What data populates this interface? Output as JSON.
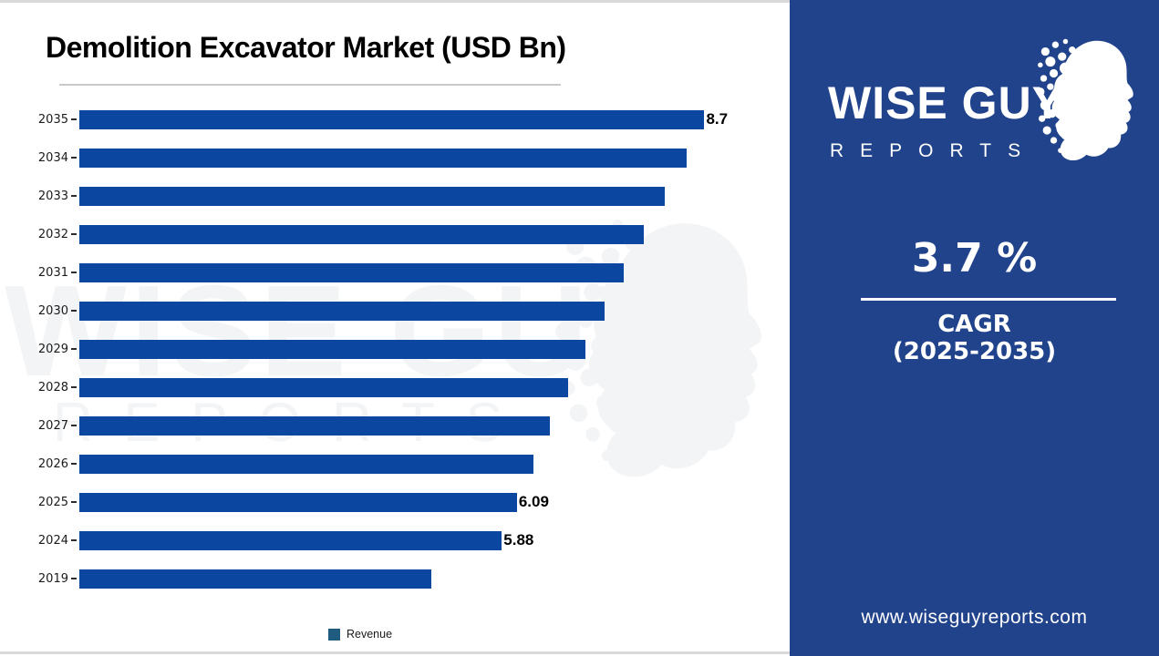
{
  "chart_data": {
    "type": "bar",
    "orientation": "horizontal",
    "title": "Demolition Excavator Market (USD Bn)",
    "xlabel": "",
    "ylabel": "",
    "unit": "USD Bn",
    "xlim": [
      0,
      9.9
    ],
    "grid": false,
    "bar_color": "#0b47a1",
    "legend_label": "Revenue",
    "legend_swatch_color": "#1f5c80",
    "legend_position": "bottom-center",
    "categories": [
      "2035",
      "2034",
      "2033",
      "2032",
      "2031",
      "2030",
      "2029",
      "2028",
      "2027",
      "2026",
      "2025",
      "2024",
      "2019"
    ],
    "values": [
      8.7,
      8.45,
      8.15,
      7.86,
      7.58,
      7.31,
      7.05,
      6.8,
      6.55,
      6.32,
      6.09,
      5.88,
      4.9
    ],
    "rows": [
      {
        "year": "2035",
        "value": 8.7,
        "label": "8.7"
      },
      {
        "year": "2034",
        "value": 8.45,
        "label": ""
      },
      {
        "year": "2033",
        "value": 8.15,
        "label": ""
      },
      {
        "year": "2032",
        "value": 7.86,
        "label": ""
      },
      {
        "year": "2031",
        "value": 7.58,
        "label": ""
      },
      {
        "year": "2030",
        "value": 7.31,
        "label": ""
      },
      {
        "year": "2029",
        "value": 7.05,
        "label": ""
      },
      {
        "year": "2028",
        "value": 6.8,
        "label": ""
      },
      {
        "year": "2027",
        "value": 6.55,
        "label": ""
      },
      {
        "year": "2026",
        "value": 6.32,
        "label": ""
      },
      {
        "year": "2025",
        "value": 6.09,
        "label": "6.09"
      },
      {
        "year": "2024",
        "value": 5.88,
        "label": "5.88"
      },
      {
        "year": "2019",
        "value": 4.9,
        "label": ""
      }
    ]
  },
  "panel": {
    "bg_color": "#21438c",
    "logo_line1": "WISE GUY",
    "logo_line2": "REPORTS",
    "cagr_value": "3.7 %",
    "cagr_label": "CAGR",
    "cagr_range": "(2025-2035)",
    "website": "www.wiseguyreports.com"
  },
  "watermark": {
    "line1": "WISE GUY",
    "line2": "REPORTS",
    "color": "#f3f4f6"
  }
}
